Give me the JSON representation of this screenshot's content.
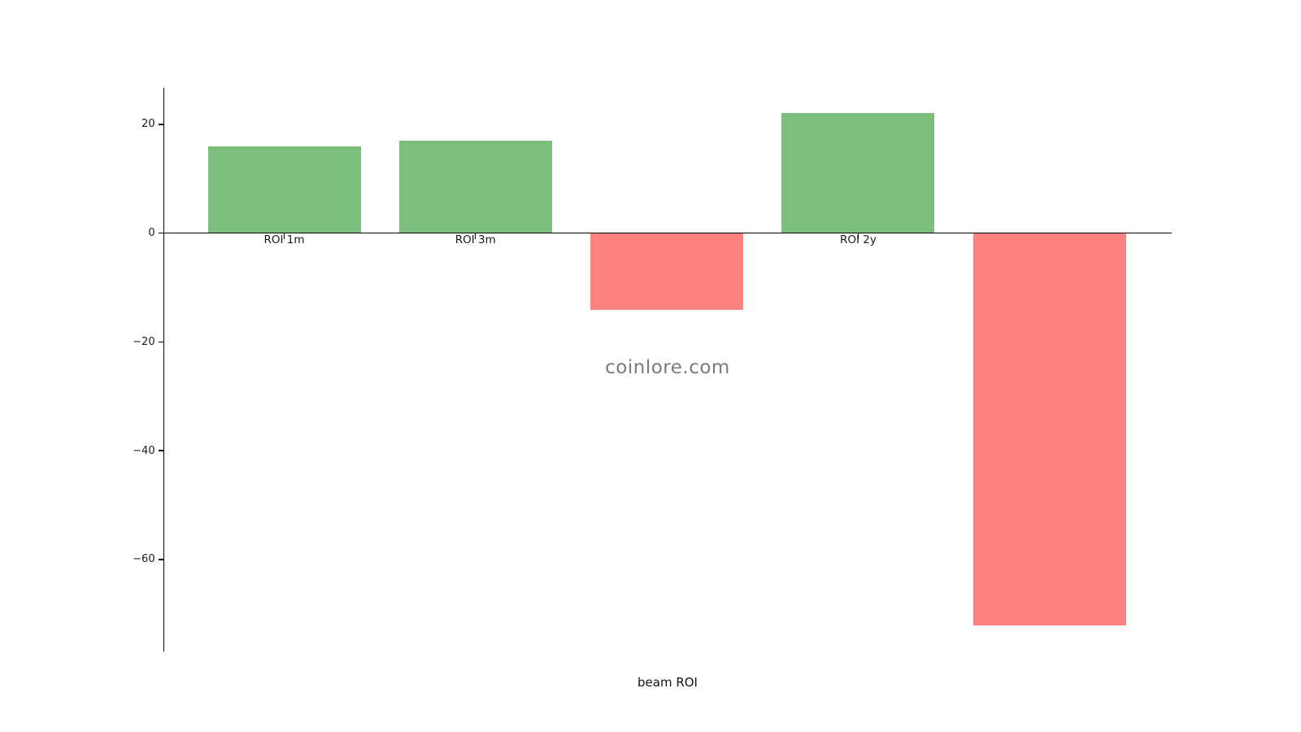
{
  "chart_data": {
    "type": "bar",
    "title": "",
    "xlabel": "beam ROI",
    "watermark": "coinlore.com",
    "categories": [
      "ROI 1m",
      "ROI 3m",
      "",
      "ROI 2y",
      ""
    ],
    "values": [
      16,
      17,
      -14,
      22,
      -72
    ],
    "bar_colors": [
      "#7cbf7c",
      "#7cbf7c",
      "#fe8181",
      "#7cbf7c",
      "#fe8181"
    ],
    "positive_color": "#7cbf7c",
    "negative_color": "#fe8181",
    "y_ticks": [
      20,
      0,
      -20,
      -40,
      -60
    ],
    "ylim": [
      -76.9,
      26.7
    ],
    "grid": false,
    "legend": false,
    "axis_color": "#000000",
    "tick_text_color": "#1a1a1a",
    "watermark_color": "#7b7b7b",
    "note_hidden_labels": "x labels of the two negative bars are covered by the bars and not visible"
  }
}
